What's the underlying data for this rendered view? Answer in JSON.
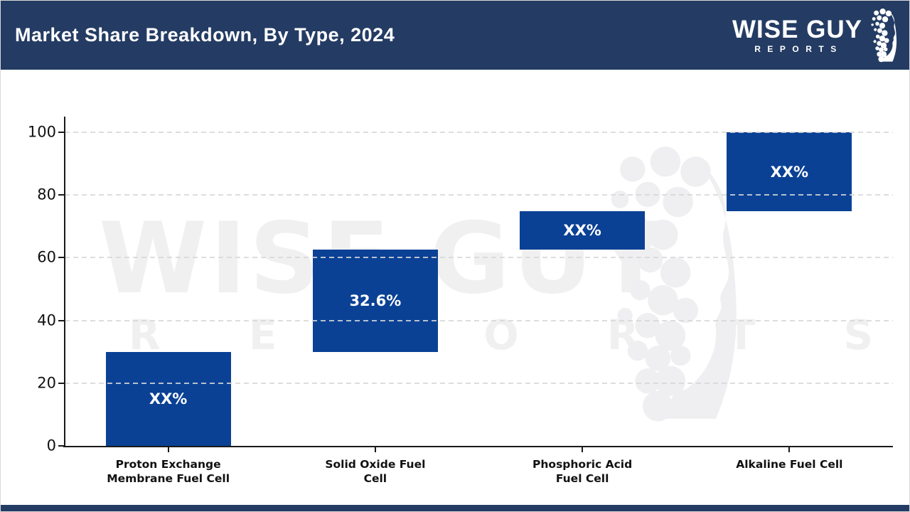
{
  "header": {
    "title": "Market Share Breakdown, By Type, 2024",
    "logo": {
      "line1": "WISE GUY",
      "line2": "REPORTS"
    }
  },
  "watermark": {
    "line1": "WISE GUY",
    "line2": "R E P O R T S"
  },
  "chart_data": {
    "type": "bar",
    "subtype": "waterfall",
    "title": "Market Share Breakdown, By Type, 2024",
    "categories": [
      "Proton Exchange Membrane Fuel Cell",
      "Solid Oxide Fuel Cell",
      "Phosphoric Acid Fuel Cell",
      "Alkaline Fuel Cell"
    ],
    "category_lines": [
      [
        "Proton Exchange",
        "Membrane Fuel Cell"
      ],
      [
        "Solid Oxide Fuel",
        "Cell"
      ],
      [
        "Phosphoric Acid",
        "Fuel Cell"
      ],
      [
        "Alkaline Fuel Cell"
      ]
    ],
    "segments": [
      {
        "category": "Proton Exchange Membrane Fuel Cell",
        "start": 0,
        "end": 30,
        "label": "XX%"
      },
      {
        "category": "Solid Oxide Fuel Cell",
        "start": 30,
        "end": 62.6,
        "label": "32.6%"
      },
      {
        "category": "Phosphoric Acid Fuel Cell",
        "start": 62.6,
        "end": 74.8,
        "label": "XX%"
      },
      {
        "category": "Alkaline Fuel Cell",
        "start": 74.8,
        "end": 100,
        "label": "XX%"
      }
    ],
    "yticks": [
      0,
      20,
      40,
      60,
      80,
      100
    ],
    "ylim": [
      0,
      105
    ],
    "xlabel": "",
    "ylabel": "",
    "grid": "horizontal-dashed",
    "legend": "none",
    "bar_color": "#0a4195",
    "value_label_color": "#ffffff",
    "axis_color": "#1a1a1a",
    "header_color": "#243c64"
  }
}
